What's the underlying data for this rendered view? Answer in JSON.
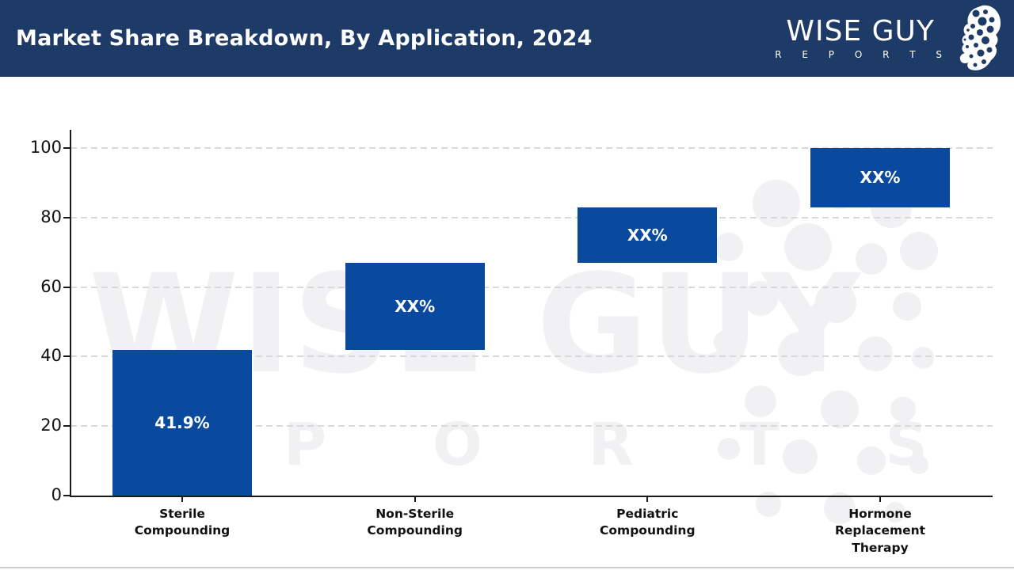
{
  "header": {
    "title": "Market Share Breakdown, By Application, 2024",
    "bg_color": "#1e3a66",
    "logo": {
      "line1": "WISE GUY",
      "line2": "R E P O R T S"
    }
  },
  "watermark": {
    "line1": "WISE GUY",
    "line2": "P O R T S"
  },
  "chart_data": {
    "type": "bar",
    "subtype": "waterfall",
    "title": "Market Share Breakdown, By Application, 2024",
    "categories": [
      "Sterile Compounding",
      "Non-Sterile Compounding",
      "Pediatric Compounding",
      "Hormone Replacement Therapy"
    ],
    "category_label_lines": [
      [
        "Sterile",
        "Compounding"
      ],
      [
        "Non-Sterile",
        "Compounding"
      ],
      [
        "Pediatric",
        "Compounding"
      ],
      [
        "Hormone",
        "Replacement",
        "Therapy"
      ]
    ],
    "series": [
      {
        "name": "Market Share",
        "segments": [
          {
            "label": "41.9%",
            "start": 0,
            "end": 41.9
          },
          {
            "label": "XX%",
            "start": 41.9,
            "end": 67
          },
          {
            "label": "XX%",
            "start": 67,
            "end": 83
          },
          {
            "label": "XX%",
            "start": 83,
            "end": 100
          }
        ]
      }
    ],
    "ylim": [
      0,
      100
    ],
    "yticks": [
      0,
      20,
      40,
      60,
      80,
      100
    ],
    "xlabel": "",
    "ylabel": "",
    "grid": {
      "horizontal": true,
      "style": "dashed",
      "color": "#d9d9d9"
    },
    "legend": null,
    "bar_color": "#0a4a9e",
    "bar_label_color": "#ffffff",
    "axis_color": "#1a1a1a"
  }
}
